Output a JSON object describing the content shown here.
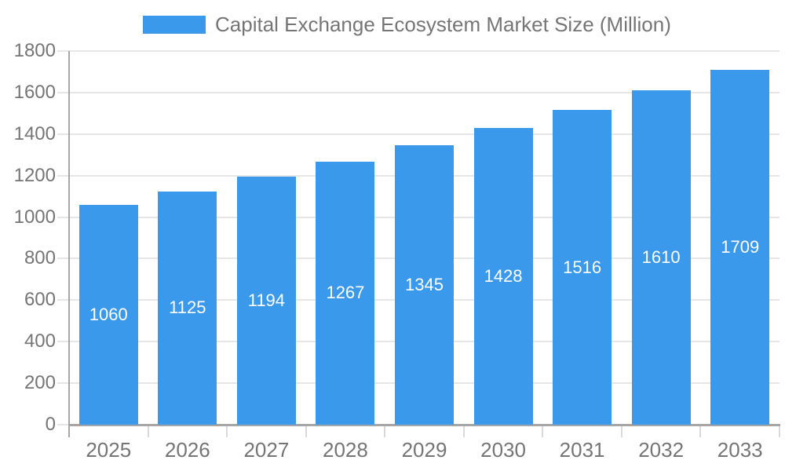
{
  "legend": {
    "series_label": "Capital Exchange Ecosystem Market Size (Million)"
  },
  "chart_data": {
    "type": "bar",
    "title": "Capital Exchange Ecosystem Market Size (Million)",
    "categories": [
      "2025",
      "2026",
      "2027",
      "2028",
      "2029",
      "2030",
      "2031",
      "2032",
      "2033"
    ],
    "values": [
      1060,
      1125,
      1194,
      1267,
      1345,
      1428,
      1516,
      1610,
      1709
    ],
    "yticks": [
      0,
      200,
      400,
      600,
      800,
      1000,
      1200,
      1400,
      1600,
      1800
    ],
    "ylim": [
      0,
      1800
    ],
    "xlabel": "",
    "ylabel": "",
    "grid": true,
    "legend_position": "top",
    "value_labels": "inside-center",
    "colors": {
      "bar": "#3B99EC",
      "grid": "#E6E6E6",
      "axis": "#A6A6A6",
      "tick": "#D9D9D9",
      "label": "#757575",
      "value_label": "#FFFFFF"
    }
  }
}
